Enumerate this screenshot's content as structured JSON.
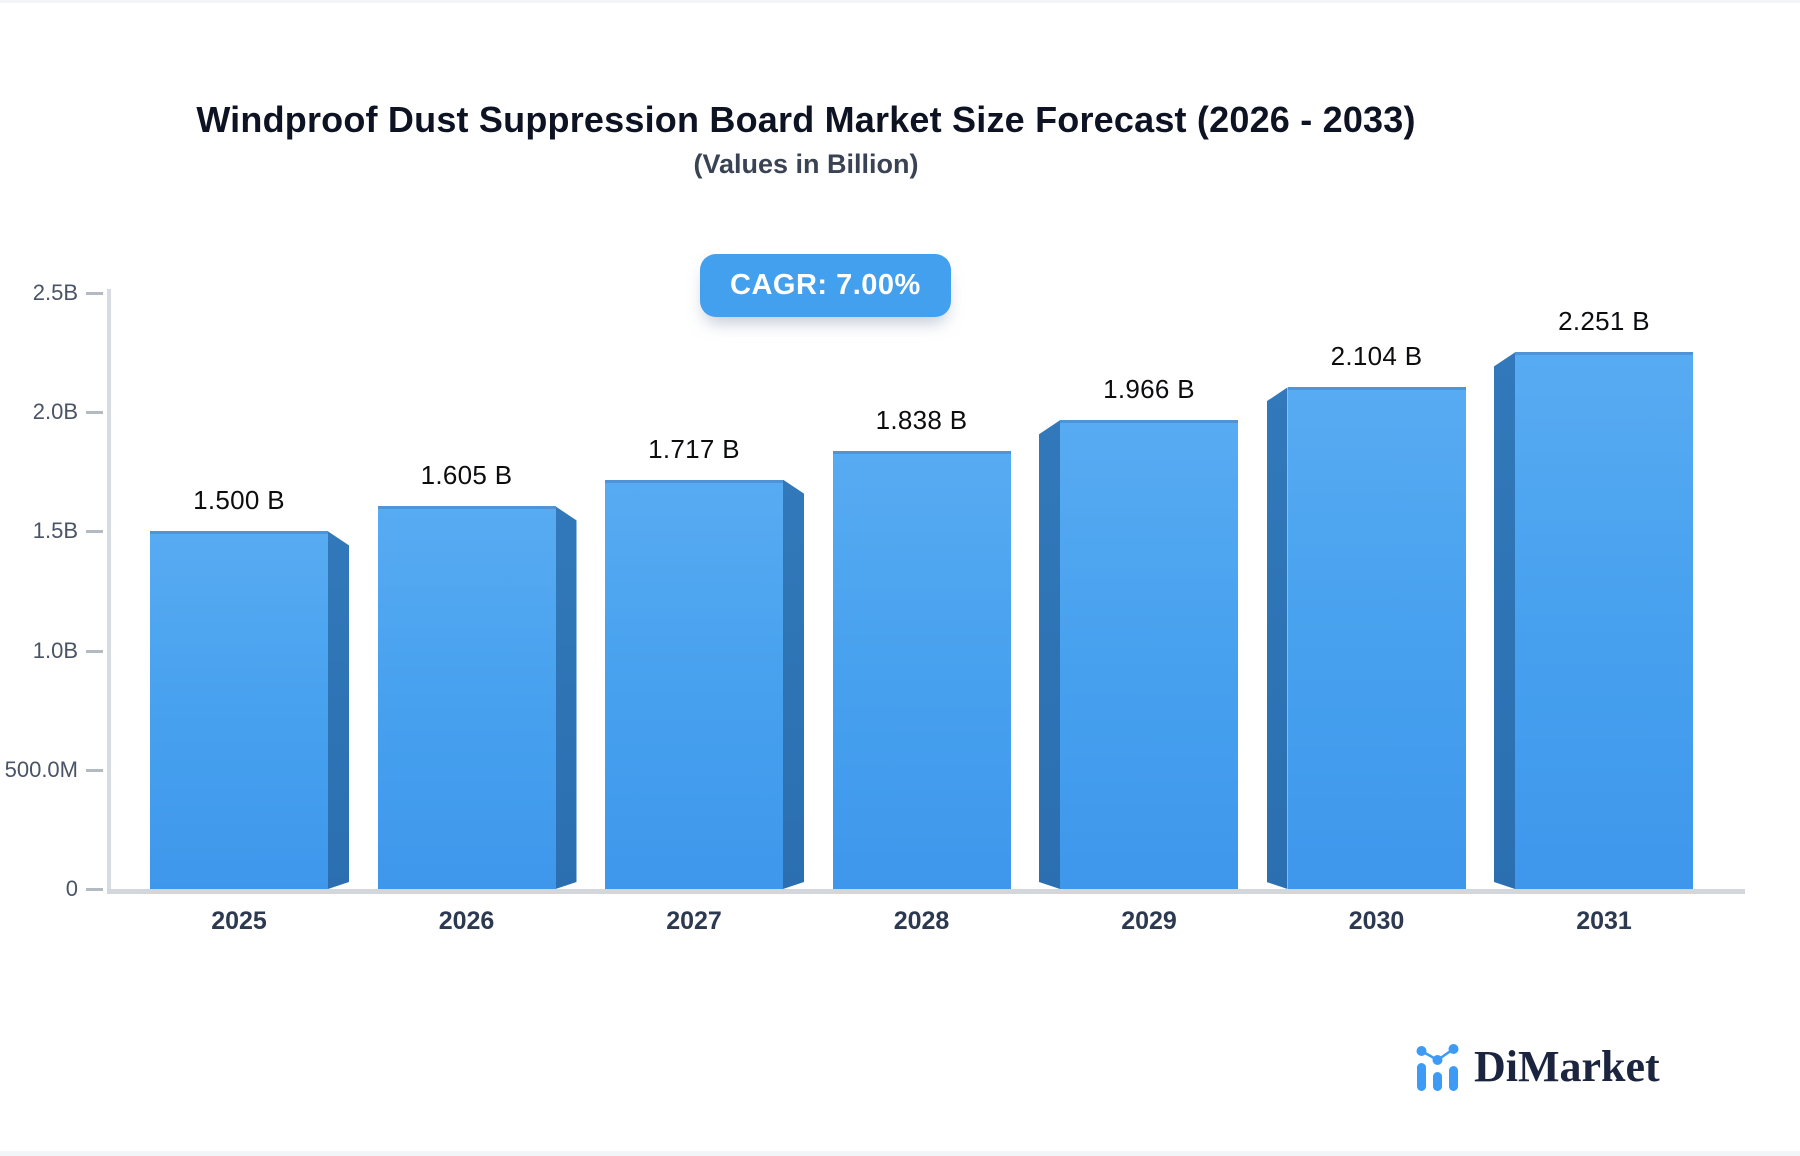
{
  "header": {
    "title": "Windproof Dust Suppression Board Market Size Forecast (2026 - 2033)",
    "subtitle": "(Values in Billion)",
    "cagr_badge": "CAGR: 7.00%"
  },
  "logo": {
    "text": "DiMarket",
    "icon": "mini-bar-chart-icon",
    "icon_color": "#3d9bf5",
    "text_color": "#1b2540"
  },
  "colors": {
    "bar_face_top": "#57abf2",
    "bar_face_bottom": "#3f97ec",
    "bar_side": "#2e74b5",
    "badge_bg": "#42a0ef",
    "axis_line": "#d5d9de",
    "tick_text": "#4a5466",
    "value_label_text": "#0c0d0f",
    "category_text": "#2c3950"
  },
  "chart_data": {
    "type": "bar",
    "title": "Windproof Dust Suppression Board Market Size Forecast (2026 - 2033)",
    "subtitle": "(Values in Billion)",
    "annotation": "CAGR: 7.00%",
    "categories": [
      "2025",
      "2026",
      "2027",
      "2028",
      "2029",
      "2030",
      "2031"
    ],
    "values": [
      1.5,
      1.605,
      1.717,
      1.838,
      1.966,
      2.104,
      2.251
    ],
    "value_labels": [
      "1.500 B",
      "1.605 B",
      "1.717 B",
      "1.838 B",
      "1.966 B",
      "2.104 B",
      "2.251 B"
    ],
    "unit": "Billion",
    "ylim": [
      0,
      2.5
    ],
    "grid": false,
    "legend": false,
    "y_ticks": [
      {
        "label": "2.5B",
        "value": 2.5
      },
      {
        "label": "2.0B",
        "value": 2.0
      },
      {
        "label": "1.5B",
        "value": 1.5
      },
      {
        "label": "1.0B",
        "value": 1.0
      },
      {
        "label": "500.0M",
        "value": 0.5
      },
      {
        "label": "0",
        "value": 0
      }
    ]
  }
}
